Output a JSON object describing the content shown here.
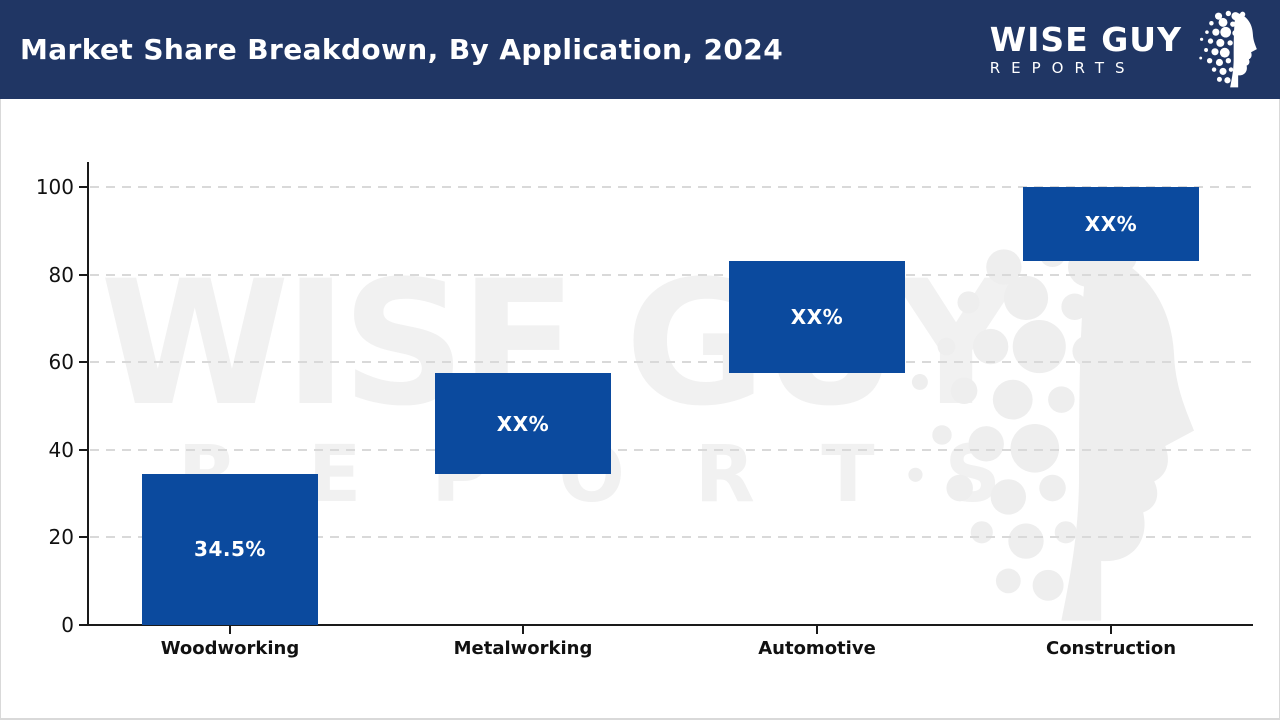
{
  "header": {
    "title": "Market Share Breakdown, By Application, 2024",
    "logo": {
      "line1": "WISE GUY",
      "line2": "REPORTS",
      "icon": "wise-guy-head-dots-icon"
    }
  },
  "watermark": {
    "line1": "WISE GUY",
    "line2": "REPORTS",
    "icon": "wise-guy-head-dots-icon"
  },
  "colors": {
    "header_bg": "#203664",
    "title_text": "#ffffff",
    "bar": "#0b4a9e",
    "bar_label": "#ffffff",
    "grid": "#d9d9d9",
    "axis": "#1a1a1a",
    "tick_label": "#111111",
    "watermark": "#f1f1f1",
    "watermark_head": "#eeeeee",
    "page_edge": "#d9d9d9"
  },
  "chart_data": {
    "type": "bar",
    "subtype": "waterfall",
    "title": "Market Share Breakdown, By Application, 2024",
    "categories": [
      "Woodworking",
      "Metalworking",
      "Automotive",
      "Construction"
    ],
    "series": [
      {
        "name": "Market Share (%)",
        "segments": [
          {
            "category": "Woodworking",
            "start": 0,
            "end": 34.5,
            "value": 34.5,
            "label": "34.5%"
          },
          {
            "category": "Metalworking",
            "start": 34.5,
            "end": 57.5,
            "value": 23,
            "label": "XX%"
          },
          {
            "category": "Automotive",
            "start": 57.5,
            "end": 83,
            "value": 25.5,
            "label": "XX%"
          },
          {
            "category": "Construction",
            "start": 83,
            "end": 100,
            "value": 17,
            "label": "XX%"
          }
        ]
      }
    ],
    "xlabel": "",
    "ylabel": "",
    "ylim": [
      0,
      100
    ],
    "yticks": [
      0,
      20,
      40,
      60,
      80,
      100
    ],
    "grid": "horizontal dashed",
    "legend": "none"
  }
}
